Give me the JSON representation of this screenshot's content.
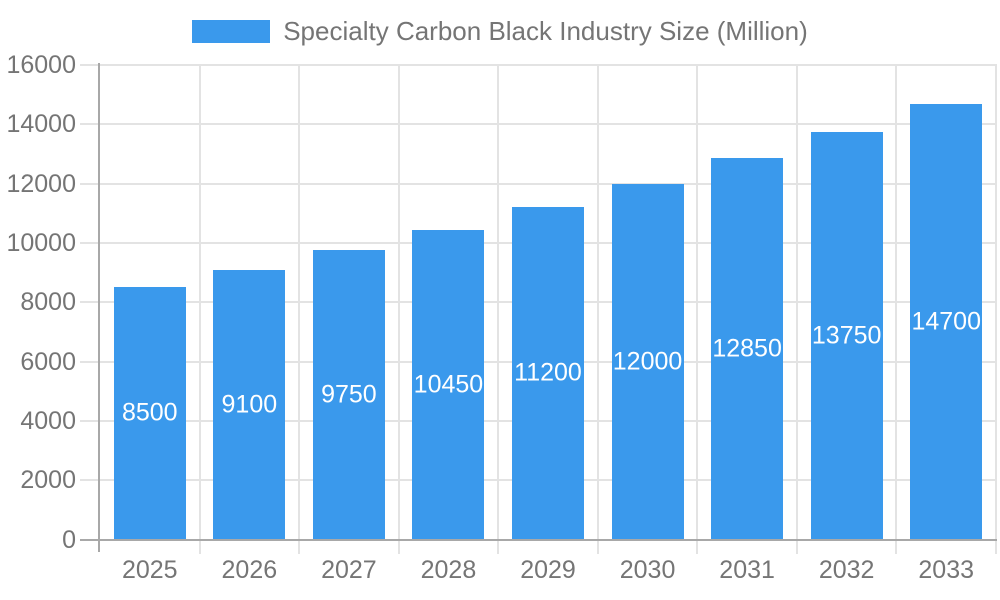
{
  "legend": {
    "label": "Specialty Carbon Black Industry Size (Million)"
  },
  "chart_data": {
    "type": "bar",
    "title": "Specialty Carbon Black Industry Size (Million)",
    "series_name": "Specialty Carbon Black Industry Size (Million)",
    "categories": [
      "2025",
      "2026",
      "2027",
      "2028",
      "2029",
      "2030",
      "2031",
      "2032",
      "2033"
    ],
    "values": [
      8500,
      9100,
      9750,
      10450,
      11200,
      12000,
      12850,
      13750,
      14700
    ],
    "value_label_texts": [
      "8500",
      "9100",
      "9750",
      "10450",
      "11200",
      "12000",
      "12850",
      "13750",
      "14700"
    ],
    "xlabel": "",
    "ylabel": "",
    "ylim": [
      0,
      16000
    ],
    "yticks": [
      0,
      2000,
      4000,
      6000,
      8000,
      10000,
      12000,
      14000,
      16000
    ],
    "grid": true,
    "legend_position": "top-center",
    "value_label_position": "inside-middle",
    "colors": {
      "bar": "#3A99EC",
      "value_label": "#FFFFFF",
      "tick_label": "#757575",
      "legend_text": "#757575",
      "axis_line": "#A8A8A8",
      "gridline": "#E3E3E3"
    }
  }
}
